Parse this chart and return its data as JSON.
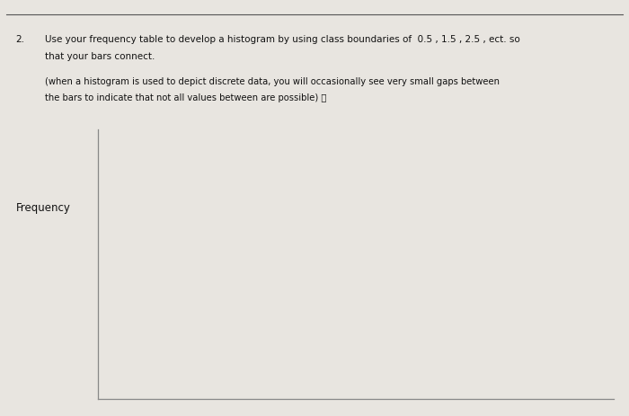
{
  "background_color": "#e8e5e0",
  "top_line_color": "#555555",
  "text_color": "#111111",
  "number_label": "2.",
  "main_text_line1": "Use your frequency table to develop a histogram by using class boundaries of  0.5 , 1.5 , 2.5 , ect. so",
  "main_text_line2": "that your bars connect.",
  "sub_text_line1": "(when a histogram is used to depict discrete data, you will occasionally see very small gaps between",
  "sub_text_line2": "the bars to indicate that not all values between are possible) ⏐",
  "ylabel": "Frequency",
  "axis_line_color": "#888888",
  "main_fontsize": 7.5,
  "sub_fontsize": 7.2,
  "ylabel_fontsize": 8.5,
  "number_fontsize": 7.5
}
